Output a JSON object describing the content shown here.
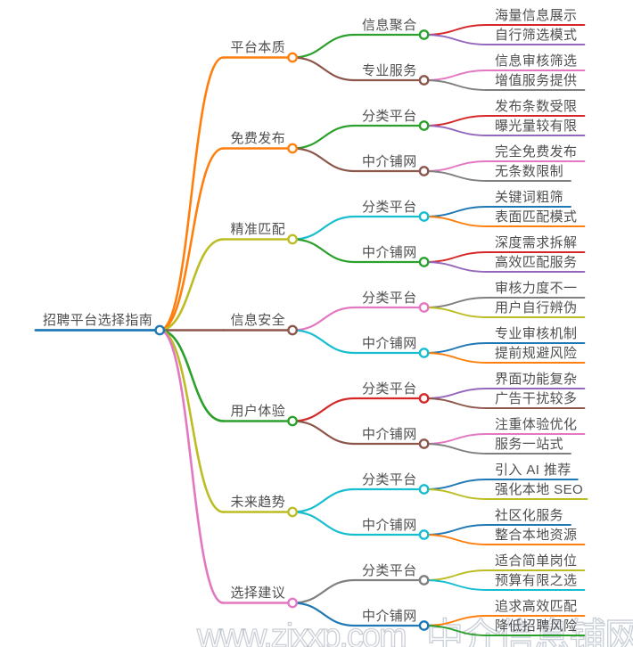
{
  "title": "招聘平台选择指南",
  "watermark": {
    "url": "www.zjxxp.com",
    "site_name": "中介信息铺网"
  },
  "mindmap": {
    "root": {
      "label": "招聘平台选择指南",
      "color": "#1f77b4",
      "children": [
        {
          "label": "平台本质",
          "color": "#ff7f0e",
          "children": [
            {
              "label": "信息聚合",
              "color": "#2ca02c",
              "children": [
                {
                  "label": "海量信息展示",
                  "color": "#d62728",
                  "children": []
                },
                {
                  "label": "自行筛选模式",
                  "color": "#9467bd",
                  "children": []
                }
              ]
            },
            {
              "label": "专业服务",
              "color": "#8c564b",
              "children": [
                {
                  "label": "信息审核筛选",
                  "color": "#e377c2",
                  "children": []
                },
                {
                  "label": "增值服务提供",
                  "color": "#7f7f7f",
                  "children": []
                }
              ]
            }
          ]
        },
        {
          "label": "免费发布",
          "color": "#ff7f0e",
          "children": [
            {
              "label": "分类平台",
              "color": "#2ca02c",
              "children": [
                {
                  "label": "发布条数受限",
                  "color": "#d62728",
                  "children": []
                },
                {
                  "label": "曝光量较有限",
                  "color": "#9467bd",
                  "children": []
                }
              ]
            },
            {
              "label": "中介铺网",
              "color": "#8c564b",
              "children": [
                {
                  "label": "完全免费发布",
                  "color": "#e377c2",
                  "children": []
                },
                {
                  "label": "无条数限制",
                  "color": "#7f7f7f",
                  "children": []
                }
              ]
            }
          ]
        },
        {
          "label": "精准匹配",
          "color": "#bcbd22",
          "children": [
            {
              "label": "分类平台",
              "color": "#17becf",
              "children": [
                {
                  "label": "关键词粗筛",
                  "color": "#1f77b4",
                  "children": []
                },
                {
                  "label": "表面匹配模式",
                  "color": "#ff7f0e",
                  "children": []
                }
              ]
            },
            {
              "label": "中介铺网",
              "color": "#2ca02c",
              "children": [
                {
                  "label": "深度需求拆解",
                  "color": "#d62728",
                  "children": []
                },
                {
                  "label": "高效匹配服务",
                  "color": "#9467bd",
                  "children": []
                }
              ]
            }
          ]
        },
        {
          "label": "信息安全",
          "color": "#8c564b",
          "children": [
            {
              "label": "分类平台",
              "color": "#e377c2",
              "children": [
                {
                  "label": "审核力度不一",
                  "color": "#7f7f7f",
                  "children": []
                },
                {
                  "label": "用户自行辨伪",
                  "color": "#bcbd22",
                  "children": []
                }
              ]
            },
            {
              "label": "中介铺网",
              "color": "#17becf",
              "children": [
                {
                  "label": "专业审核机制",
                  "color": "#1f77b4",
                  "children": []
                },
                {
                  "label": "提前规避风险",
                  "color": "#ff7f0e",
                  "children": []
                }
              ]
            }
          ]
        },
        {
          "label": "用户体验",
          "color": "#2ca02c",
          "children": [
            {
              "label": "分类平台",
              "color": "#d62728",
              "children": [
                {
                  "label": "界面功能复杂",
                  "color": "#9467bd",
                  "children": []
                },
                {
                  "label": "广告干扰较多",
                  "color": "#8c564b",
                  "children": []
                }
              ]
            },
            {
              "label": "中介铺网",
              "color": "#8c564b",
              "children": [
                {
                  "label": "注重体验优化",
                  "color": "#e377c2",
                  "children": []
                },
                {
                  "label": "服务一站式",
                  "color": "#7f7f7f",
                  "children": []
                }
              ]
            }
          ]
        },
        {
          "label": "未来趋势",
          "color": "#bcbd22",
          "children": [
            {
              "label": "分类平台",
              "color": "#17becf",
              "children": [
                {
                  "label": "引入 AI 推荐",
                  "color": "#1f77b4",
                  "children": []
                },
                {
                  "label": "强化本地 SEO",
                  "color": "#bcbd22",
                  "children": []
                }
              ]
            },
            {
              "label": "中介铺网",
              "color": "#17becf",
              "children": [
                {
                  "label": "社区化服务",
                  "color": "#1f77b4",
                  "children": []
                },
                {
                  "label": "整合本地资源",
                  "color": "#ff7f0e",
                  "children": []
                }
              ]
            }
          ]
        },
        {
          "label": "选择建议",
          "color": "#e377c2",
          "children": [
            {
              "label": "分类平台",
              "color": "#7f7f7f",
              "children": [
                {
                  "label": "适合简单岗位",
                  "color": "#bcbd22",
                  "children": []
                },
                {
                  "label": "预算有限之选",
                  "color": "#17becf",
                  "children": []
                }
              ]
            },
            {
              "label": "中介铺网",
              "color": "#1f77b4",
              "children": [
                {
                  "label": "追求高效匹配",
                  "color": "#ff7f0e",
                  "children": []
                },
                {
                  "label": "降低招聘风险",
                  "color": "#2ca02c",
                  "children": []
                }
              ]
            }
          ]
        }
      ]
    }
  }
}
